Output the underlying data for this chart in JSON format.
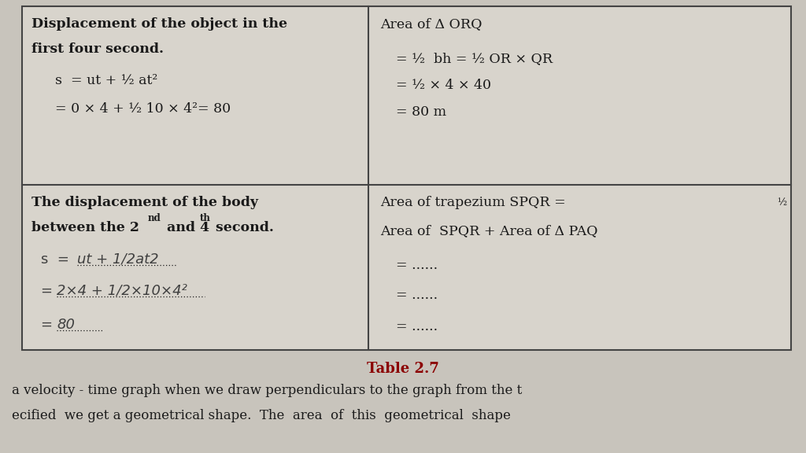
{
  "background_color": "#c8c4bc",
  "table_bg": "#d8d4cc",
  "border_color": "#444444",
  "text_color": "#1a1a1a",
  "handwritten_color": "#404040",
  "title": "Table 2.7",
  "title_color": "#8B0000",
  "title_fontsize": 13,
  "bottom_text_line1": "a velocity - time graph when we draw perpendiculars to the graph from the t",
  "bottom_text_line2": "ecified  we get a geometrical shape.  The  area  of  this  geometrical  shape"
}
